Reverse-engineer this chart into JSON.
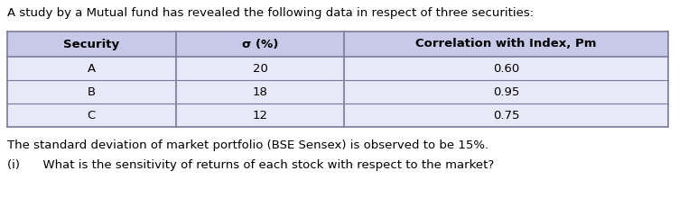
{
  "title": "A study by a Mutual fund has revealed the following data in respect of three securities:",
  "col_headers": [
    "Security",
    "σ (%)",
    "Correlation with Index, Pm"
  ],
  "rows": [
    [
      "A",
      "20",
      "0.60"
    ],
    [
      "B",
      "18",
      "0.95"
    ],
    [
      "C",
      "12",
      "0.75"
    ]
  ],
  "footer1": "The standard deviation of market portfolio (BSE Sensex) is observed to be 15%.",
  "footer2": "(i)      What is the sensitivity of returns of each stock with respect to the market?",
  "header_bg": "#c8c8e8",
  "row_bg": "#e8e8f8",
  "border_color": "#7a7a9a",
  "text_color": "#000000",
  "background_color": "#ffffff",
  "title_fontsize": 9.5,
  "header_fontsize": 9.5,
  "data_fontsize": 9.5,
  "footer_fontsize": 9.5
}
